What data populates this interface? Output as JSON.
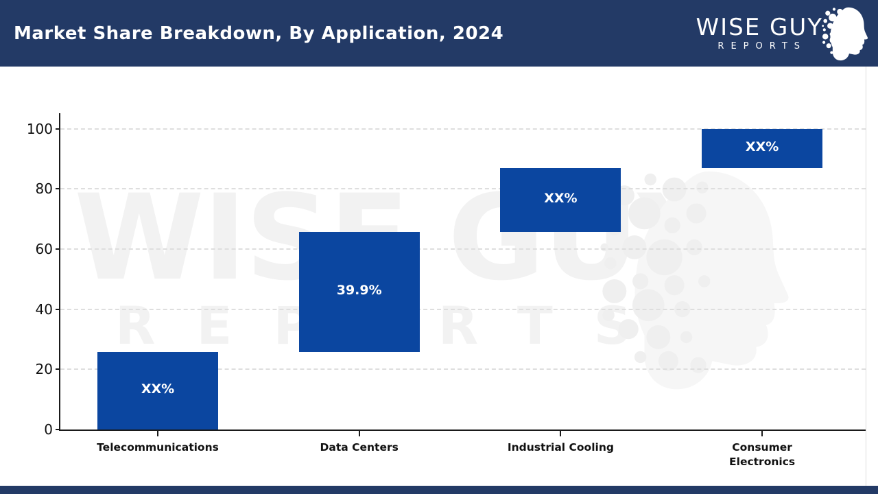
{
  "header": {
    "title": "Market Share Breakdown, By Application, 2024",
    "background_color": "#233a66",
    "brand": {
      "name_top": "WISE GUY",
      "name_bottom": "REPORTS"
    }
  },
  "watermark": {
    "line1": "WISE GUY",
    "line2": "REPORTS"
  },
  "chart_data": {
    "type": "bar",
    "subtype": "waterfall-floating-bars",
    "title": "Market Share Breakdown, By Application, 2024",
    "categories": [
      "Telecommunications",
      "Data Centers",
      "Industrial Cooling",
      "Consumer\nElectronics"
    ],
    "segments": [
      {
        "category": "Telecommunications",
        "start": 0,
        "end": 25.8,
        "value": 25.8,
        "label": "XX%"
      },
      {
        "category": "Data Centers",
        "start": 25.8,
        "end": 65.7,
        "value": 39.9,
        "label": "39.9%"
      },
      {
        "category": "Industrial Cooling",
        "start": 65.7,
        "end": 87.0,
        "value": 21.3,
        "label": "XX%"
      },
      {
        "category": "Consumer Electronics",
        "start": 87.0,
        "end": 100,
        "value": 13.0,
        "label": "XX%"
      }
    ],
    "xlabel": "",
    "ylabel": "",
    "ylim": [
      0,
      100
    ],
    "yticks": [
      0,
      20,
      40,
      60,
      80,
      100
    ],
    "grid": "horizontal-dashed",
    "legend": "none",
    "bar_color": "#0b46a0",
    "value_label_color": "#ffffff"
  }
}
